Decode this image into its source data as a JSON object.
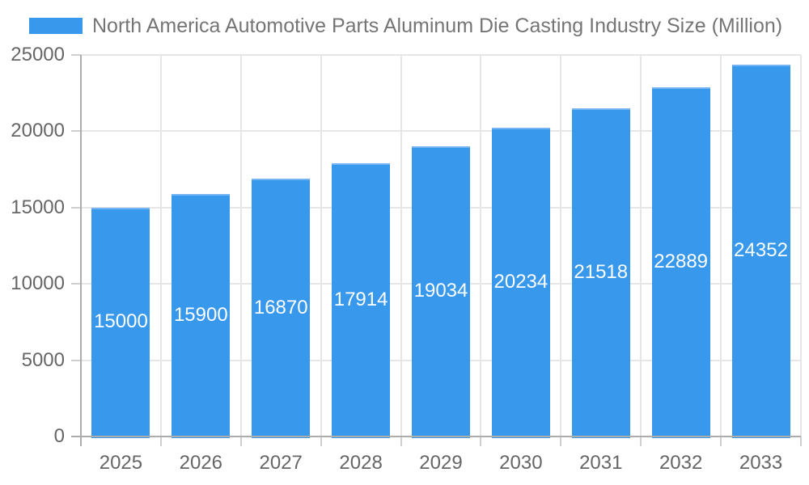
{
  "legend": {
    "label": "North America Automotive Parts Aluminum Die Casting Industry Size (Million)",
    "swatch_color": "#3898EC",
    "text_color": "#757575"
  },
  "chart_data": {
    "type": "bar",
    "title": "North America Automotive Parts Aluminum Die Casting Industry Size (Million)",
    "categories": [
      "2025",
      "2026",
      "2027",
      "2028",
      "2029",
      "2030",
      "2031",
      "2032",
      "2033"
    ],
    "values": [
      15000,
      15900,
      16870,
      17914,
      19034,
      20234,
      21518,
      22889,
      24352
    ],
    "value_labels": [
      "15000",
      "15900",
      "16870",
      "17914",
      "19034",
      "20234",
      "21518",
      "22889",
      "24352"
    ],
    "xlabel": "",
    "ylabel": "",
    "ylim": [
      0,
      25000
    ],
    "y_ticks": [
      0,
      5000,
      10000,
      15000,
      20000,
      25000
    ],
    "y_tick_labels": [
      "0",
      "5000",
      "10000",
      "15000",
      "20000",
      "25000"
    ],
    "grid": true,
    "legend_position": "top-left",
    "bar_color": "#3898EC",
    "bar_top_edge_color": "#74B4F2",
    "value_label_color": "#FFFFFF",
    "axis_line_color": "#ACACAC",
    "grid_color": "#E6E6E6",
    "tick_color": "#CFCFCF",
    "tick_label_color": "#666666"
  }
}
